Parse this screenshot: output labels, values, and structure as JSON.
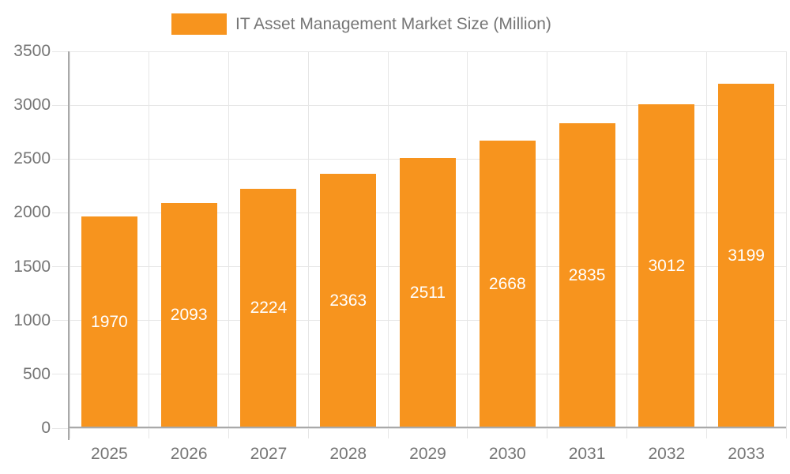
{
  "chart_data": {
    "type": "bar",
    "title": "IT Asset Management Market Size (Million)",
    "legend": {
      "position": "top",
      "label": "IT Asset Management Market Size (Million)"
    },
    "categories": [
      "2025",
      "2026",
      "2027",
      "2028",
      "2029",
      "2030",
      "2031",
      "2032",
      "2033"
    ],
    "series": [
      {
        "name": "IT Asset Management Market Size (Million)",
        "values": [
          1970,
          2093,
          2224,
          2363,
          2511,
          2668,
          2835,
          3012,
          3199
        ]
      }
    ],
    "value_labels": "inside-center",
    "xlabel": "",
    "ylabel": "",
    "ylim": [
      0,
      3500
    ],
    "yticks": [
      0,
      500,
      1000,
      1500,
      2000,
      2500,
      3000,
      3500
    ],
    "grid": "on",
    "colors": {
      "bar": "#F7941E",
      "bar_label_text": "#FFFFFF",
      "axis_text": "#757575",
      "grid_line": "#E6E6E6",
      "axis_line": "#A9A9A9"
    }
  }
}
